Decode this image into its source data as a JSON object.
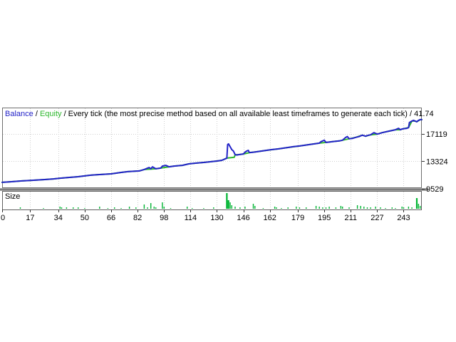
{
  "palette": {
    "balance_line": "#2323c8",
    "equity_line": "#2eb82e",
    "size_bars": "#00b432",
    "grid": "#cfcfcf",
    "panel_border": "#6e6e6e",
    "axis_text": "#000000",
    "background": "#ffffff"
  },
  "chart": {
    "title": {
      "balance": "Balance",
      "sep1": " / ",
      "equity": "Equity",
      "rest": " / Every tick (the most precise method based on all available least timeframes to generate each tick) / 41.74"
    }
  },
  "size_panel": {
    "label": "Size"
  },
  "chart_data": {
    "type": "line",
    "title": "Balance / Equity / Every tick (the most precise method based on all available least timeframes to generate each tick) / 41.74",
    "xlabel": "",
    "ylabel": "",
    "grid": true,
    "legend_position": "in-title",
    "axes": {
      "x_max": 254,
      "x_ticks": [
        0,
        17,
        34,
        50,
        66,
        82,
        98,
        114,
        130,
        146,
        162,
        179,
        195,
        211,
        227,
        243
      ],
      "y_ticks": [
        17119,
        13324,
        9529
      ],
      "ylim": [
        9726,
        20766
      ]
    },
    "series": [
      {
        "name": "Equity",
        "color_key": "equity_line",
        "points": [
          [
            0,
            10425
          ],
          [
            5,
            10500
          ],
          [
            12,
            10625
          ],
          [
            18,
            10700
          ],
          [
            25,
            10800
          ],
          [
            31,
            10900
          ],
          [
            35,
            11000
          ],
          [
            40,
            11100
          ],
          [
            46,
            11200
          ],
          [
            53,
            11400
          ],
          [
            59,
            11500
          ],
          [
            66,
            11600
          ],
          [
            72,
            11800
          ],
          [
            76,
            11900
          ],
          [
            83,
            12000
          ],
          [
            86,
            12200
          ],
          [
            93,
            12300
          ],
          [
            96,
            12400
          ],
          [
            101,
            12575
          ],
          [
            104,
            12675
          ],
          [
            109,
            12775
          ],
          [
            113,
            12975
          ],
          [
            117,
            13075
          ],
          [
            122,
            13175
          ],
          [
            126,
            13275
          ],
          [
            130,
            13375
          ],
          [
            133,
            13475
          ],
          [
            136,
            13775
          ],
          [
            140.5,
            13900
          ],
          [
            141,
            14250
          ],
          [
            143,
            14250
          ],
          [
            146,
            14350
          ],
          [
            150,
            14550
          ],
          [
            154,
            14650
          ],
          [
            160,
            14850
          ],
          [
            167,
            15050
          ],
          [
            173,
            15250
          ],
          [
            180,
            15450
          ],
          [
            186,
            15650
          ],
          [
            192,
            15850
          ],
          [
            196,
            15950
          ],
          [
            200,
            16050
          ],
          [
            204,
            16150
          ],
          [
            206,
            16250
          ],
          [
            210,
            16450
          ],
          [
            214,
            16650
          ],
          [
            218,
            16950
          ],
          [
            220,
            16800
          ],
          [
            223,
            17000
          ],
          [
            227,
            17100
          ],
          [
            230,
            17300
          ],
          [
            234,
            17500
          ],
          [
            238,
            17700
          ],
          [
            241,
            17700
          ],
          [
            243,
            17850
          ],
          [
            246,
            18000
          ],
          [
            248,
            18900
          ],
          [
            250,
            18900
          ],
          [
            251,
            18800
          ],
          [
            253,
            19100
          ],
          [
            254,
            19100
          ]
        ]
      },
      {
        "name": "Balance",
        "color_key": "balance_line",
        "points": [
          [
            0,
            10425
          ],
          [
            5,
            10500
          ],
          [
            12,
            10625
          ],
          [
            18,
            10700
          ],
          [
            25,
            10800
          ],
          [
            31,
            10900
          ],
          [
            35,
            11000
          ],
          [
            40,
            11100
          ],
          [
            46,
            11200
          ],
          [
            53,
            11400
          ],
          [
            59,
            11500
          ],
          [
            66,
            11600
          ],
          [
            72,
            11800
          ],
          [
            76,
            11900
          ],
          [
            83,
            12000
          ],
          [
            86,
            12200
          ],
          [
            88,
            12400
          ],
          [
            89,
            12475
          ],
          [
            90,
            12300
          ],
          [
            91,
            12575
          ],
          [
            93,
            12300
          ],
          [
            96,
            12400
          ],
          [
            97,
            12675
          ],
          [
            99,
            12775
          ],
          [
            101,
            12575
          ],
          [
            104,
            12675
          ],
          [
            109,
            12775
          ],
          [
            113,
            12975
          ],
          [
            117,
            13075
          ],
          [
            122,
            13175
          ],
          [
            126,
            13275
          ],
          [
            130,
            13375
          ],
          [
            133,
            13475
          ],
          [
            135,
            13675
          ],
          [
            136,
            13775
          ],
          [
            136.5,
            15650
          ],
          [
            137,
            15750
          ],
          [
            138,
            15350
          ],
          [
            139,
            14950
          ],
          [
            140,
            14750
          ],
          [
            141,
            14250
          ],
          [
            142,
            14200
          ],
          [
            143,
            14250
          ],
          [
            146,
            14350
          ],
          [
            147,
            14600
          ],
          [
            148,
            14750
          ],
          [
            149,
            14850
          ],
          [
            149.5,
            14600
          ],
          [
            150,
            14550
          ],
          [
            152,
            14600
          ],
          [
            154,
            14650
          ],
          [
            157,
            14750
          ],
          [
            160,
            14850
          ],
          [
            163,
            14950
          ],
          [
            167,
            15050
          ],
          [
            170,
            15150
          ],
          [
            173,
            15250
          ],
          [
            176,
            15350
          ],
          [
            180,
            15450
          ],
          [
            183,
            15550
          ],
          [
            186,
            15650
          ],
          [
            189,
            15750
          ],
          [
            192,
            15850
          ],
          [
            193,
            16050
          ],
          [
            194,
            16150
          ],
          [
            195,
            16250
          ],
          [
            196,
            15950
          ],
          [
            198,
            16000
          ],
          [
            200,
            16050
          ],
          [
            202,
            16100
          ],
          [
            204,
            16150
          ],
          [
            206,
            16250
          ],
          [
            207,
            16450
          ],
          [
            208,
            16650
          ],
          [
            209,
            16750
          ],
          [
            210,
            16450
          ],
          [
            212,
            16500
          ],
          [
            214,
            16650
          ],
          [
            216,
            16750
          ],
          [
            218,
            16950
          ],
          [
            220,
            16800
          ],
          [
            221,
            16900
          ],
          [
            223,
            17000
          ],
          [
            224,
            17150
          ],
          [
            225,
            17300
          ],
          [
            226,
            17200
          ],
          [
            227,
            17100
          ],
          [
            228,
            17150
          ],
          [
            230,
            17300
          ],
          [
            232,
            17400
          ],
          [
            234,
            17500
          ],
          [
            236,
            17600
          ],
          [
            238,
            17700
          ],
          [
            239,
            17800
          ],
          [
            240,
            17900
          ],
          [
            241,
            17700
          ],
          [
            242,
            17800
          ],
          [
            243,
            17850
          ],
          [
            245,
            17900
          ],
          [
            246,
            18000
          ],
          [
            246.5,
            18700
          ],
          [
            248,
            18900
          ],
          [
            249,
            19000
          ],
          [
            250,
            18900
          ],
          [
            251,
            18800
          ],
          [
            252,
            19000
          ],
          [
            253,
            19100
          ],
          [
            254,
            19100
          ]
        ]
      }
    ],
    "size_bars": {
      "name": "Size",
      "color_key": "size_bars",
      "bars": [
        [
          11,
          2
        ],
        [
          25,
          1
        ],
        [
          35,
          3
        ],
        [
          36,
          2
        ],
        [
          39,
          2
        ],
        [
          43,
          2
        ],
        [
          46,
          2
        ],
        [
          50,
          1
        ],
        [
          59,
          3
        ],
        [
          64,
          1
        ],
        [
          68,
          2
        ],
        [
          72,
          1
        ],
        [
          77,
          3
        ],
        [
          81,
          2
        ],
        [
          86,
          6
        ],
        [
          88,
          2
        ],
        [
          90,
          8
        ],
        [
          92,
          3
        ],
        [
          93,
          2
        ],
        [
          97,
          9
        ],
        [
          98,
          3
        ],
        [
          102,
          1
        ],
        [
          112,
          3
        ],
        [
          115,
          1
        ],
        [
          122,
          1
        ],
        [
          128,
          2
        ],
        [
          136,
          22
        ],
        [
          137,
          12
        ],
        [
          138,
          9
        ],
        [
          139,
          5
        ],
        [
          141,
          3
        ],
        [
          144,
          2
        ],
        [
          147,
          3
        ],
        [
          152,
          7
        ],
        [
          153,
          4
        ],
        [
          158,
          1
        ],
        [
          165,
          3
        ],
        [
          166,
          2
        ],
        [
          169,
          1
        ],
        [
          173,
          2
        ],
        [
          178,
          3
        ],
        [
          180,
          2
        ],
        [
          184,
          2
        ],
        [
          190,
          4
        ],
        [
          192,
          3
        ],
        [
          194,
          2
        ],
        [
          196,
          2
        ],
        [
          198,
          3
        ],
        [
          202,
          2
        ],
        [
          205,
          4
        ],
        [
          206,
          3
        ],
        [
          210,
          2
        ],
        [
          215,
          5
        ],
        [
          217,
          4
        ],
        [
          219,
          3
        ],
        [
          221,
          2
        ],
        [
          223,
          2
        ],
        [
          226,
          3
        ],
        [
          229,
          2
        ],
        [
          232,
          1
        ],
        [
          236,
          2
        ],
        [
          238,
          1
        ],
        [
          242,
          3
        ],
        [
          243,
          2
        ],
        [
          246,
          3
        ],
        [
          248,
          2
        ],
        [
          251,
          15
        ],
        [
          252,
          7
        ],
        [
          253,
          4
        ]
      ]
    }
  }
}
